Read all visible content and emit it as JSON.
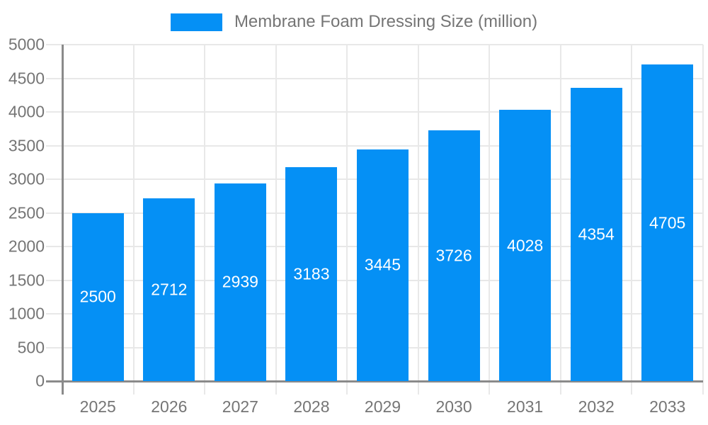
{
  "legend": {
    "label": "Membrane Foam Dressing Size (million)"
  },
  "chart_data": {
    "type": "bar",
    "title": "Membrane Foam Dressing Size (million)",
    "categories": [
      "2025",
      "2026",
      "2027",
      "2028",
      "2029",
      "2030",
      "2031",
      "2032",
      "2033"
    ],
    "values": [
      2500,
      2712,
      2939,
      3183,
      3445,
      3726,
      4028,
      4354,
      4705
    ],
    "xlabel": "",
    "ylabel": "",
    "ylim": [
      0,
      5000
    ],
    "ytick_interval": 500,
    "y_tick_labels": [
      "0",
      "500",
      "1000",
      "1500",
      "2000",
      "2500",
      "3000",
      "3500",
      "4000",
      "4500",
      "5000"
    ],
    "grid": true,
    "legend_position": "top-center",
    "value_labels": "centered-inside-bars",
    "colors": {
      "bar": "#0590F5",
      "value_label_text": "#ffffff",
      "axis_line": "#8a8a8a",
      "gridline": "#e8e8e8",
      "tick_text": "#757575",
      "legend_text": "#757575",
      "background": "#ffffff"
    }
  }
}
